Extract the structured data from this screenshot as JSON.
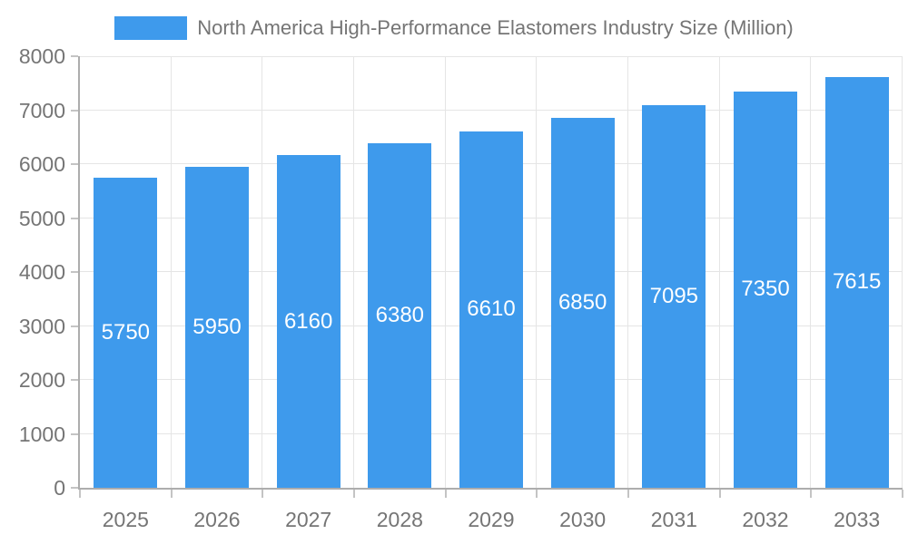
{
  "legend": {
    "label": "North America High-Performance Elastomers Industry Size (Million)"
  },
  "chart_data": {
    "type": "bar",
    "title": "North America High-Performance Elastomers Industry Size (Million)",
    "categories": [
      "2025",
      "2026",
      "2027",
      "2028",
      "2029",
      "2030",
      "2031",
      "2032",
      "2033"
    ],
    "values": [
      5750,
      5950,
      6160,
      6380,
      6610,
      6850,
      7095,
      7350,
      7615
    ],
    "bar_labels": [
      "5750",
      "5950",
      "6160",
      "6380",
      "6610",
      "6850",
      "7095",
      "7350",
      "7615"
    ],
    "xlabel": "",
    "ylabel": "",
    "ylim": [
      0,
      8000
    ],
    "y_ticks": [
      0,
      1000,
      2000,
      3000,
      4000,
      5000,
      6000,
      7000,
      8000
    ],
    "grid": true,
    "legend_position": "top-center",
    "value_label_position": "inside-middle",
    "colors": {
      "bar": "#3E9AEC",
      "axis_line": "#ADADAD",
      "grid_line": "#E5E5E5",
      "tick_line": "#C4C4C4",
      "axis_text": "#757575",
      "legend_text": "#757575",
      "value_label_text": "#FFFFFF",
      "background": "#FFFFFF"
    }
  }
}
